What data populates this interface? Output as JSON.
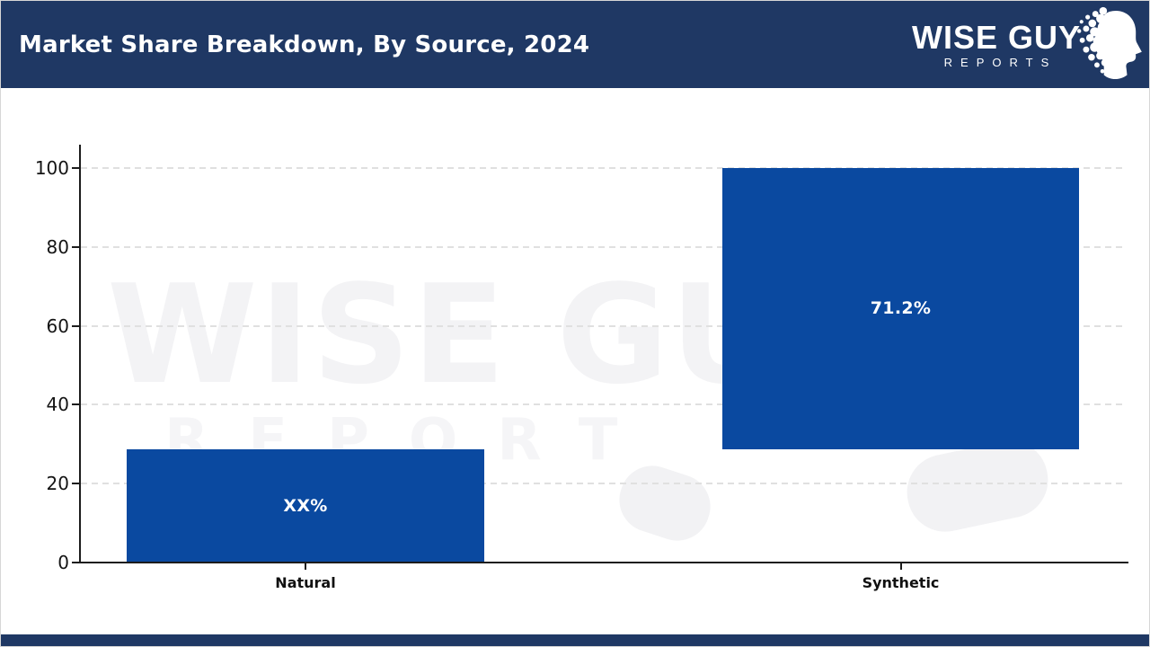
{
  "header": {
    "title": "Market Share Breakdown, By Source, 2024",
    "bg_color": "#1f3864",
    "logo": {
      "line1": "WISE GUY",
      "line2": "REPORTS"
    }
  },
  "watermark": {
    "big_text": "WISE GUY",
    "small_text": "REPORT"
  },
  "chart_data": {
    "type": "bar",
    "subtype": "stacked-waterfall",
    "title": "Market Share Breakdown, By Source, 2024",
    "categories": [
      "Natural",
      "Synthetic"
    ],
    "bars": [
      {
        "category": "Natural",
        "start": 0,
        "end": 28.8,
        "label": "XX%"
      },
      {
        "category": "Synthetic",
        "start": 28.8,
        "end": 100,
        "label": "71.2%"
      }
    ],
    "xlabel": "",
    "ylabel": "",
    "ylim": [
      0,
      100
    ],
    "yticks": [
      0,
      20,
      40,
      60,
      80,
      100
    ],
    "grid": "horizontal-dashed",
    "legend": "none",
    "bar_color": "#0a49a0",
    "value_label_color": "#ffffff",
    "header_color": "#1f3864"
  }
}
